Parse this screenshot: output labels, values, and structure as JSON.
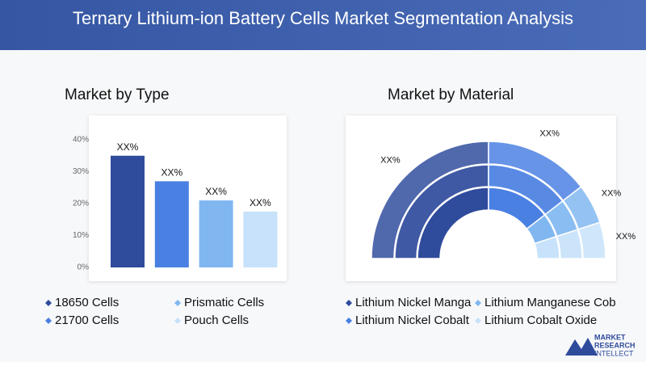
{
  "header": {
    "title": "Ternary Lithium-ion Battery Cells Market Segmentation Analysis"
  },
  "logo": [
    "MARKET",
    "RESEARCH",
    "INTELLECT"
  ],
  "chart_data": [
    {
      "type": "bar",
      "title": "Market by Type",
      "categories": [
        "18650 Cells",
        "21700 Cells",
        "Prismatic Cells",
        "Pouch Cells"
      ],
      "values": [
        35,
        27,
        21,
        17.5
      ],
      "value_labels": [
        "XX%",
        "XX%",
        "XX%",
        "XX%"
      ],
      "colors": [
        "#2f4b9c",
        "#4a80e2",
        "#80b7f1",
        "#c7e2fa"
      ],
      "ylim": [
        0,
        40
      ],
      "yticks": [
        {
          "value": 0,
          "label": "0%"
        },
        {
          "value": 10,
          "label": "10%"
        },
        {
          "value": 20,
          "label": "20%"
        },
        {
          "value": 30,
          "label": "30%"
        },
        {
          "value": 40,
          "label": "40%"
        }
      ]
    },
    {
      "type": "halfdonut",
      "title": "Market by Material",
      "categories": [
        "Lithium Nickel Manga",
        "Lithium Nickel Cobalt",
        "Lithium Manganese Cob",
        "Lithium Cobalt Oxide"
      ],
      "values": [
        50,
        29,
        11,
        10
      ],
      "value_labels": [
        "XX%",
        "XX%",
        "XX%",
        "XX%"
      ],
      "colors": [
        "#2f4b9c",
        "#4a80e2",
        "#80b7f1",
        "#c7e2fa"
      ]
    }
  ]
}
